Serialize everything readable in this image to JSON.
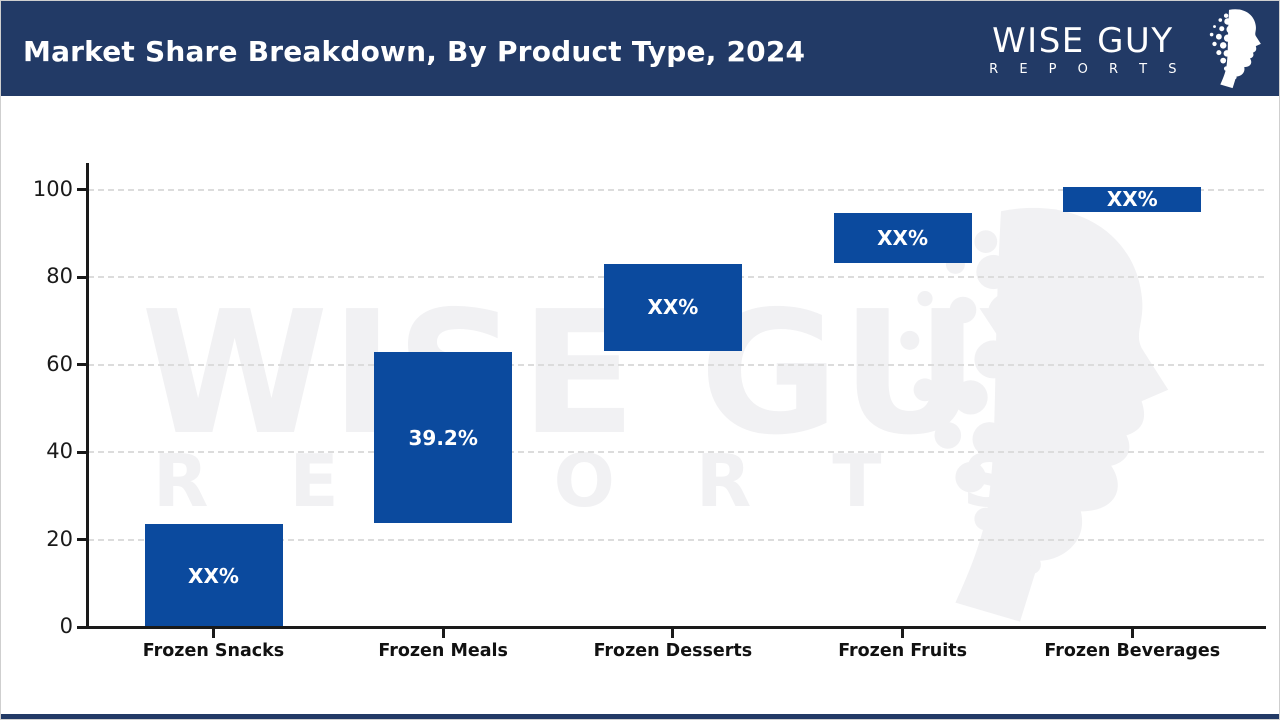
{
  "header": {
    "title": "Market Share Breakdown, By Product Type, 2024",
    "logo": {
      "line1": "WISE GUY",
      "line2": "R E P O R T S"
    }
  },
  "watermark": {
    "line1": "WISE GUY",
    "line2": "R E P O R T S"
  },
  "colors": {
    "header_bg": "#223a66",
    "footer_bg": "#223a66",
    "bar": "#0b4a9e",
    "bar_label": "#ffffff",
    "grid": "#dcdcdc",
    "axis": "#1a1a1a",
    "watermark": "#f1f1f3"
  },
  "chart_data": {
    "type": "bar",
    "subtype": "waterfall-floating-bars",
    "title": "Market Share Breakdown, By Product Type, 2024",
    "categories": [
      "Frozen Snacks",
      "Frozen Meals",
      "Frozen Desserts",
      "Frozen Fruits",
      "Frozen Beverages"
    ],
    "bars": [
      {
        "category": "Frozen Snacks",
        "label": "XX%",
        "start": 0,
        "end": 23.5
      },
      {
        "category": "Frozen Meals",
        "label": "39.2%",
        "start": 23.7,
        "end": 62.9
      },
      {
        "category": "Frozen Desserts",
        "label": "XX%",
        "start": 63.2,
        "end": 82.9
      },
      {
        "category": "Frozen Fruits",
        "label": "XX%",
        "start": 83.2,
        "end": 94.7
      },
      {
        "category": "Frozen Beverages",
        "label": "XX%",
        "start": 94.9,
        "end": 100.6
      }
    ],
    "xlabel": "",
    "ylabel": "",
    "yticks": [
      0,
      20,
      40,
      60,
      80,
      100
    ],
    "ylim": [
      0,
      106
    ],
    "grid": "horizontal-dashed",
    "legend": "none",
    "bar_color": "#0b4a9e"
  }
}
